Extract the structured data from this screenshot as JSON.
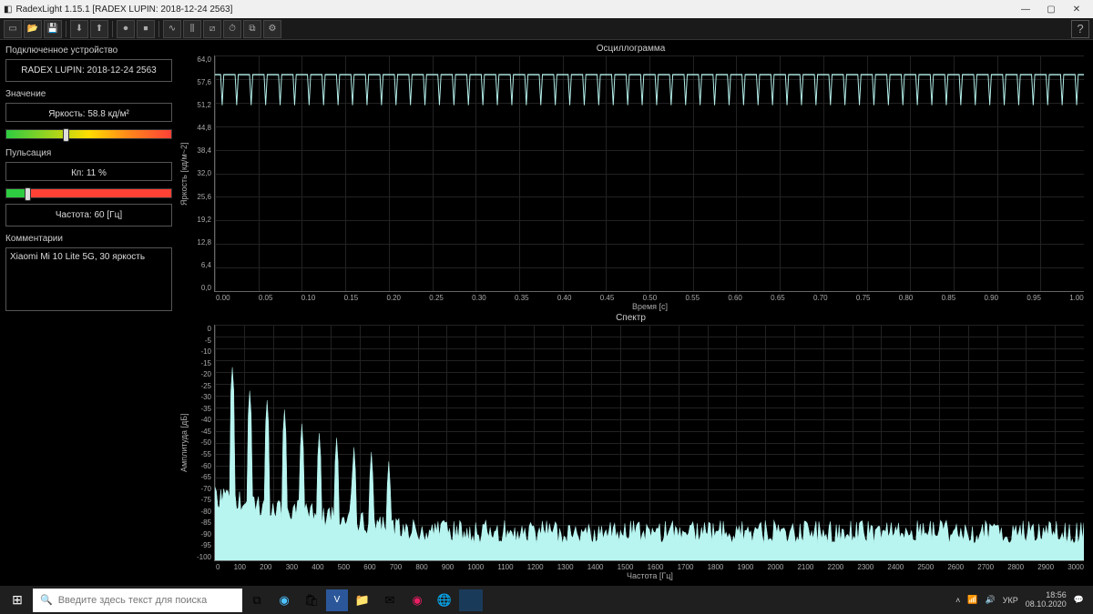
{
  "window": {
    "title": "RadexLight 1.15.1 [RADEX LUPIN: 2018-12-24 2563]"
  },
  "sidebar": {
    "device_header": "Подключенное устройство",
    "device_name": "RADEX LUPIN: 2018-12-24 2563",
    "value_header": "Значение",
    "brightness": "Яркость: 58.8 кд/м²",
    "brightness_marker_pct": 34,
    "pulsation_header": "Пульсация",
    "kp": "Кп: 11 %",
    "kp_marker_pct": 11,
    "freq": "Частота: 60 [Гц]",
    "comments_header": "Комментарии",
    "comment": "Xiaomi Mi 10 Lite 5G, 30 яркость"
  },
  "osc": {
    "title": "Осциллограмма",
    "ylabel": "Яркость [кд/м~2]",
    "xlabel": "Время [с]",
    "yticks": [
      "64,0",
      "57,6",
      "51,2",
      "44,8",
      "38,4",
      "32,0",
      "25,6",
      "19,2",
      "12,8",
      "6,4",
      "0,0"
    ],
    "xticks": [
      "0.00",
      "0.05",
      "0.10",
      "0.15",
      "0.20",
      "0.25",
      "0.30",
      "0.35",
      "0.40",
      "0.45",
      "0.50",
      "0.55",
      "0.60",
      "0.65",
      "0.70",
      "0.75",
      "0.80",
      "0.85",
      "0.90",
      "0.95",
      "1.00"
    ],
    "ylim": [
      0,
      64
    ],
    "base": 58.8,
    "dip": 50.5,
    "freq_hz": 60,
    "stroke": "#b8f5f0",
    "grid": "#222222"
  },
  "spec": {
    "title": "Спектр",
    "ylabel": "Амплитуда [дБ]",
    "xlabel": "Частота [Гц]",
    "yticks": [
      "0",
      "-5",
      "-10",
      "-15",
      "-20",
      "-25",
      "-30",
      "-35",
      "-40",
      "-45",
      "-50",
      "-55",
      "-60",
      "-65",
      "-70",
      "-75",
      "-80",
      "-85",
      "-90",
      "-95",
      "-100"
    ],
    "xticks": [
      "0",
      "100",
      "200",
      "300",
      "400",
      "500",
      "600",
      "700",
      "800",
      "900",
      "1000",
      "1100",
      "1200",
      "1300",
      "1400",
      "1500",
      "1600",
      "1700",
      "1800",
      "1900",
      "2000",
      "2100",
      "2200",
      "2300",
      "2400",
      "2500",
      "2600",
      "2700",
      "2800",
      "2900",
      "3000"
    ],
    "xlim": [
      0,
      3000
    ],
    "ylim": [
      -100,
      0
    ],
    "peaks": [
      [
        60,
        -18
      ],
      [
        120,
        -28
      ],
      [
        180,
        -32
      ],
      [
        240,
        -36
      ],
      [
        300,
        -42
      ],
      [
        360,
        -46
      ],
      [
        420,
        -48
      ],
      [
        480,
        -52
      ],
      [
        540,
        -54
      ],
      [
        600,
        -58
      ]
    ],
    "noise_floor": -88,
    "fill": "#b8f5f0"
  },
  "taskbar": {
    "search_placeholder": "Введите здесь текст для поиска",
    "lang": "УКР",
    "time": "18:56",
    "date": "08.10.2020"
  }
}
